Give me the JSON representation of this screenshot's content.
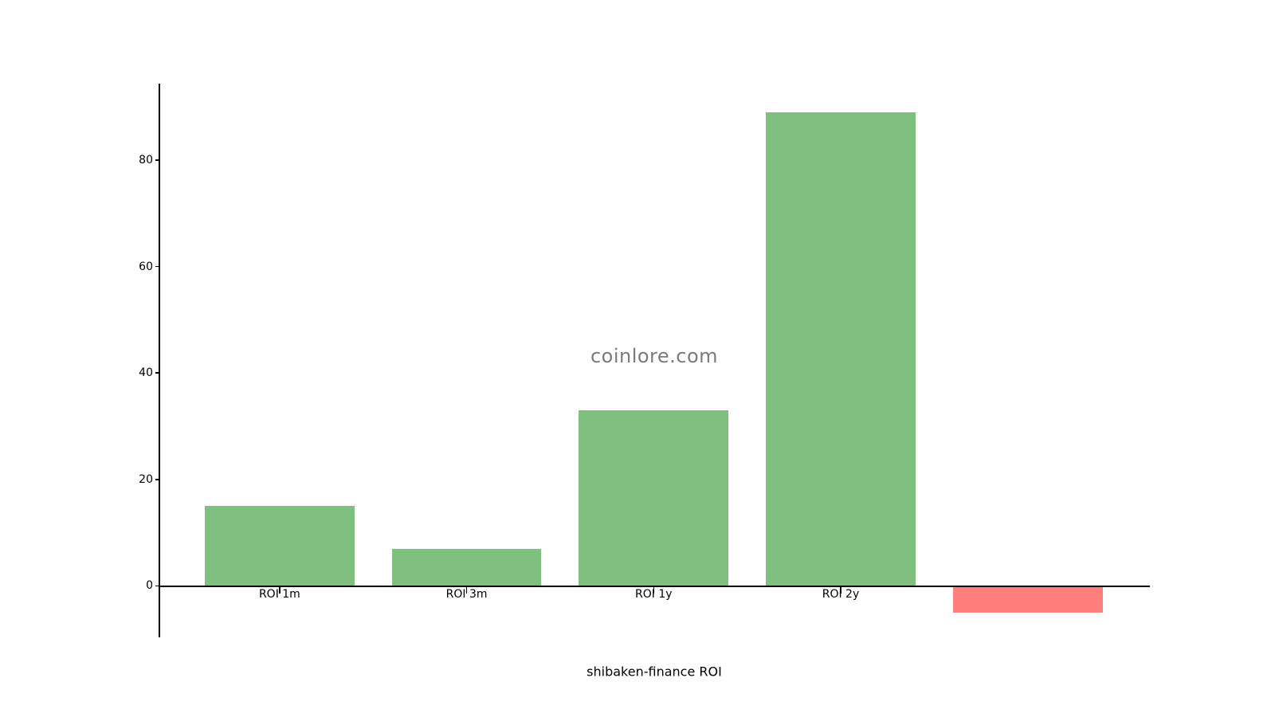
{
  "page": {
    "background": "#ffffff"
  },
  "watermark": {
    "text": "coinlore.com",
    "color": "#7a7a7a"
  },
  "chart_data": {
    "type": "bar",
    "title": "shibaken-finance ROI",
    "title_position": "bottom-center",
    "categories": [
      "ROI 1m",
      "ROI 3m",
      "ROI 1y",
      "ROI 2y",
      ""
    ],
    "values": [
      15,
      7,
      33,
      89,
      -5
    ],
    "bar_colors": [
      "#7fbf7f",
      "#7fbf7f",
      "#7fbf7f",
      "#7fbf7f",
      "#ff7f7f"
    ],
    "positive_color": "#7fbf7f",
    "negative_color": "#ff7f7f",
    "xlabel": "",
    "ylabel": "",
    "yticks": [
      0,
      20,
      40,
      60,
      80
    ],
    "ylim": [
      -9.7,
      94.4
    ],
    "xlim": [
      -0.647,
      4.653
    ],
    "bar_width": 0.8,
    "grid": false,
    "legend": "none",
    "axis_color": "#000000",
    "tick_label_color": "#000000",
    "baseline_at_zero": true
  }
}
